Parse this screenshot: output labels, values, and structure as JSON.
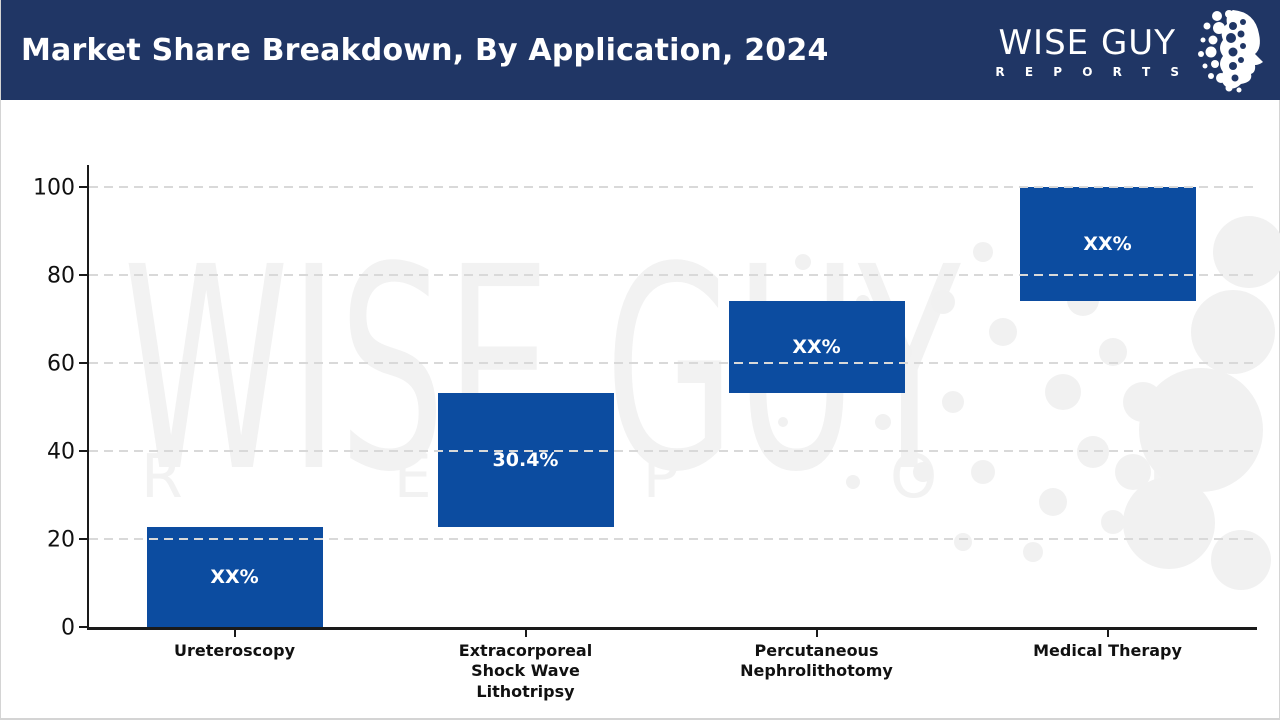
{
  "header": {
    "title": "Market Share Breakdown, By Application, 2024",
    "logo": {
      "name": "WISE GUY",
      "sub": "R E P O R T S"
    }
  },
  "watermark": {
    "name": "WISE GUY",
    "sub": "R E P O R T S"
  },
  "chart_data": {
    "type": "bar",
    "subtype": "waterfall",
    "title": "Market Share Breakdown, By Application, 2024",
    "categories": [
      "Ureteroscopy",
      "Extracorporeal Shock Wave Lithotripsy",
      "Percutaneous Nephrolithotomy",
      "Medical Therapy"
    ],
    "category_lines": [
      [
        "Ureteroscopy"
      ],
      [
        "Extracorporeal",
        "Shock Wave",
        "Lithotripsy"
      ],
      [
        "Percutaneous",
        "Nephrolithotomy"
      ],
      [
        "Medical Therapy"
      ]
    ],
    "segments": [
      {
        "category": "Ureteroscopy",
        "start": 0,
        "end": 22.8,
        "label": "XX%"
      },
      {
        "category": "Extracorporeal Shock Wave Lithotripsy",
        "start": 22.8,
        "end": 53.2,
        "label": "30.4%"
      },
      {
        "category": "Percutaneous Nephrolithotomy",
        "start": 53.2,
        "end": 74,
        "label": "XX%"
      },
      {
        "category": "Medical Therapy",
        "start": 74,
        "end": 100,
        "label": "XX%"
      }
    ],
    "yticks": [
      0,
      20,
      40,
      60,
      80,
      100
    ],
    "ylim": [
      0,
      100
    ],
    "xlabel": "",
    "ylabel": "",
    "grid": "dashed-horizontal",
    "legend": "none"
  },
  "colors": {
    "header_bg": "#203665",
    "bar": "#0c4ca0",
    "bar_label": "#ffffff",
    "grid": "#d9d9d9",
    "axis": "#1a1a1a",
    "watermark": "#f2f2f2"
  }
}
